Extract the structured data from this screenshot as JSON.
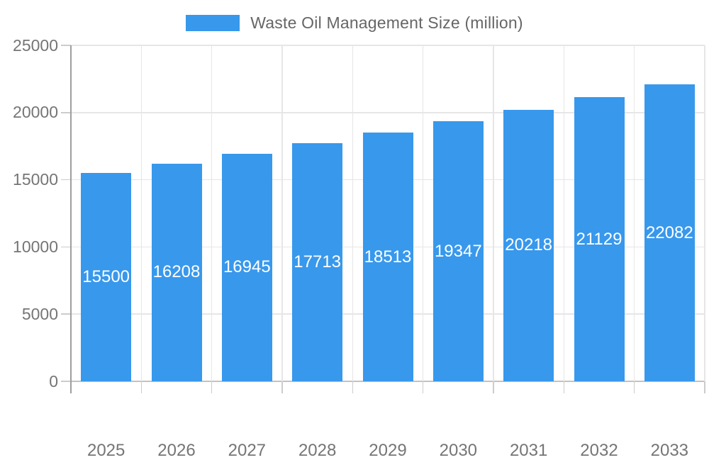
{
  "chart_data": {
    "type": "bar",
    "categories": [
      "2025",
      "2026",
      "2027",
      "2028",
      "2029",
      "2030",
      "2031",
      "2032",
      "2033"
    ],
    "series": [
      {
        "name": "Waste Oil Management Size (million)",
        "values": [
          15500,
          16208,
          16945,
          17713,
          18513,
          19347,
          20218,
          21129,
          22082
        ]
      }
    ],
    "title": "",
    "xlabel": "",
    "ylabel": "",
    "ylim": [
      0,
      25000
    ],
    "yticks": [
      0,
      5000,
      10000,
      15000,
      20000,
      25000
    ],
    "grid": true,
    "legend_position": "top-center",
    "value_labels": "inside-center",
    "colors": {
      "bar": "#3898EC",
      "bar_label": "#ffffff",
      "axis_text": "#757575",
      "legend_text": "#666666",
      "gridline": "#e6e6e6",
      "zero_line": "#c2c2c2",
      "axis_line": "#9e9e9e",
      "tick": "#cccccc"
    }
  }
}
